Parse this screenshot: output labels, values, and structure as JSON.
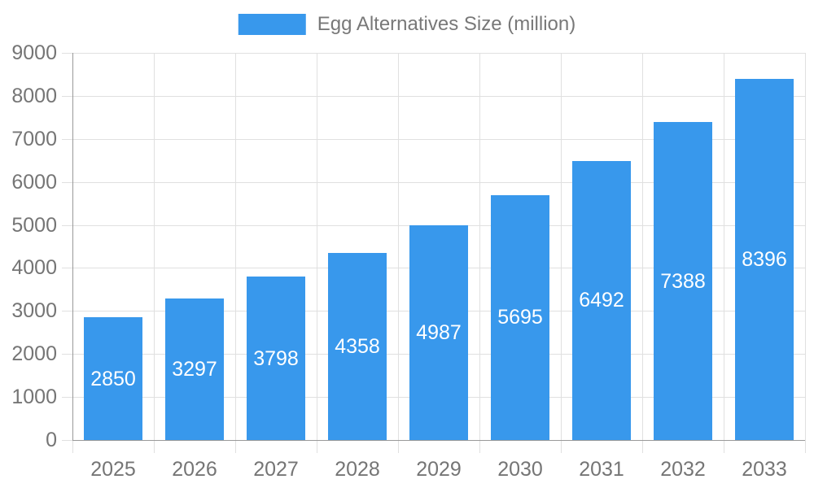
{
  "legend": {
    "label": "Egg Alternatives Size (million)"
  },
  "chart_data": {
    "type": "bar",
    "title": "",
    "xlabel": "",
    "ylabel": "",
    "categories": [
      "2025",
      "2026",
      "2027",
      "2028",
      "2029",
      "2030",
      "2031",
      "2032",
      "2033"
    ],
    "series": [
      {
        "name": "Egg Alternatives Size (million)",
        "values": [
          2850,
          3297,
          3798,
          4358,
          4987,
          5695,
          6492,
          7388,
          8396
        ]
      }
    ],
    "y_tick_labels": [
      "0",
      "1000",
      "2000",
      "3000",
      "4000",
      "5000",
      "6000",
      "7000",
      "8000",
      "9000"
    ],
    "ylim": [
      0,
      9000
    ],
    "y_tick_step": 1000,
    "grid": true,
    "legend_position": "top",
    "bar_value_labels_shown": true
  },
  "colors": {
    "bar": "#3898EC",
    "bar_label": "#FFFFFF",
    "grid_line": "#E0E0E0",
    "axis_line": "#999999",
    "tick_text": "#757575",
    "legend_text": "#787878"
  }
}
